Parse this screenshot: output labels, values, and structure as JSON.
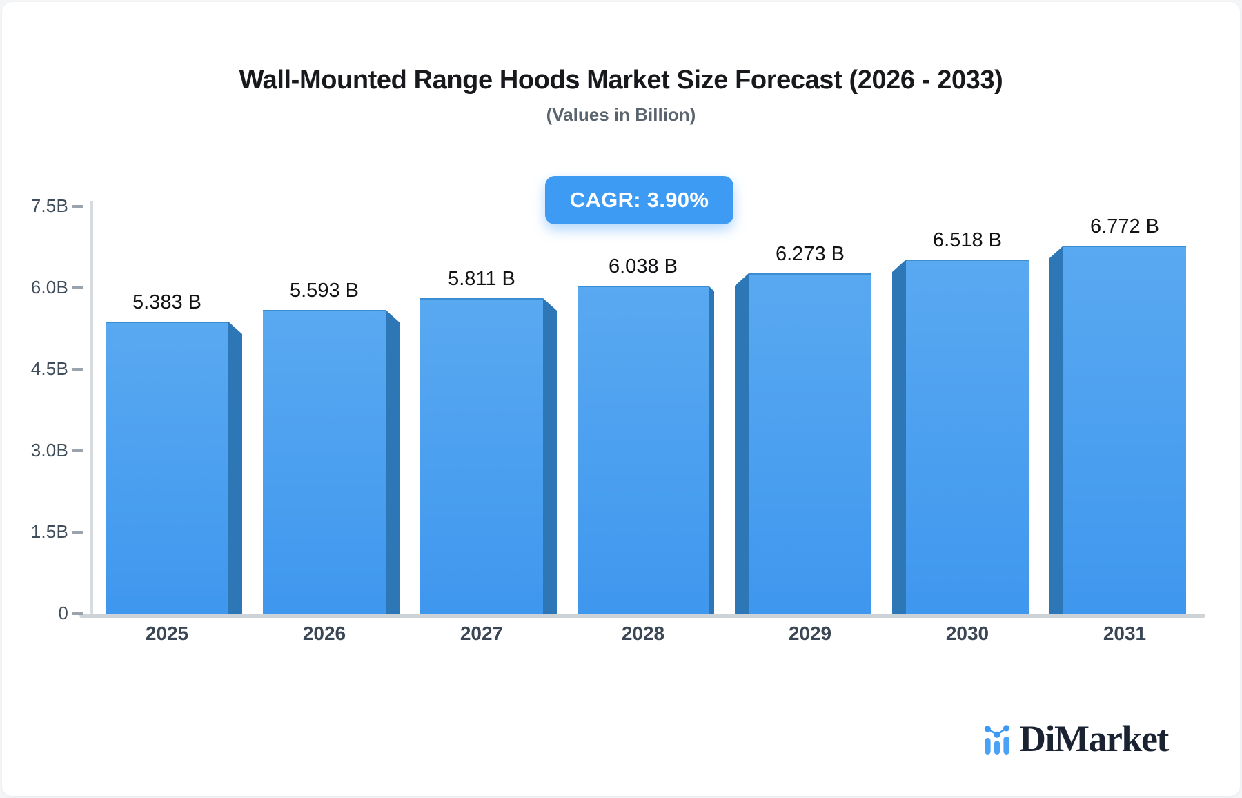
{
  "page": {
    "background": "#f3f5f7",
    "card_background": "#ffffff"
  },
  "header": {
    "title": "Wall-Mounted Range Hoods Market Size Forecast (2026 - 2033)",
    "subtitle": "(Values in Billion)"
  },
  "cagr_badge": {
    "label": "CAGR: 3.90%",
    "background": "#3e9bf4",
    "text_color": "#ffffff"
  },
  "chart_data": {
    "type": "bar",
    "title": "Wall-Mounted Range Hoods Market Size Forecast (2026 - 2033)",
    "subtitle": "(Values in Billion)",
    "cagr": "3.90%",
    "categories": [
      "2025",
      "2026",
      "2027",
      "2028",
      "2029",
      "2030",
      "2031"
    ],
    "values": [
      5.383,
      5.593,
      5.811,
      6.038,
      6.273,
      6.518,
      6.772
    ],
    "value_labels": [
      "5.383 B",
      "5.593 B",
      "5.811 B",
      "6.038 B",
      "6.273 B",
      "6.518 B",
      "6.772 B"
    ],
    "xlabel": "",
    "ylabel": "",
    "ylim": [
      0,
      7.5
    ],
    "yticks": [
      {
        "value": 7.5,
        "label": "7.5B"
      },
      {
        "value": 6.0,
        "label": "6.0B"
      },
      {
        "value": 4.5,
        "label": "4.5B"
      },
      {
        "value": 3.0,
        "label": "3.0B"
      },
      {
        "value": 1.5,
        "label": "1.5B"
      },
      {
        "value": 0,
        "label": "0"
      }
    ],
    "grid": false,
    "legend_position": "none",
    "style_3d": true,
    "bar_face_top_color": "#59a9f1",
    "bar_face_bottom_color": "#3f97ee",
    "bar_side_color": "#2e77b6",
    "axis_color": "#d8dbde",
    "tick_color": "#99a3ad",
    "tick_label_color": "#3f4c59",
    "value_label_color": "#101214",
    "category_label_color": "#3a4653"
  },
  "branding": {
    "name": "DiMarket",
    "icon": "mini-bar-chart-icon",
    "icon_color": "#4aa2f6",
    "icon_accent_color": "#3d99f4",
    "text_color": "#1b2333"
  }
}
